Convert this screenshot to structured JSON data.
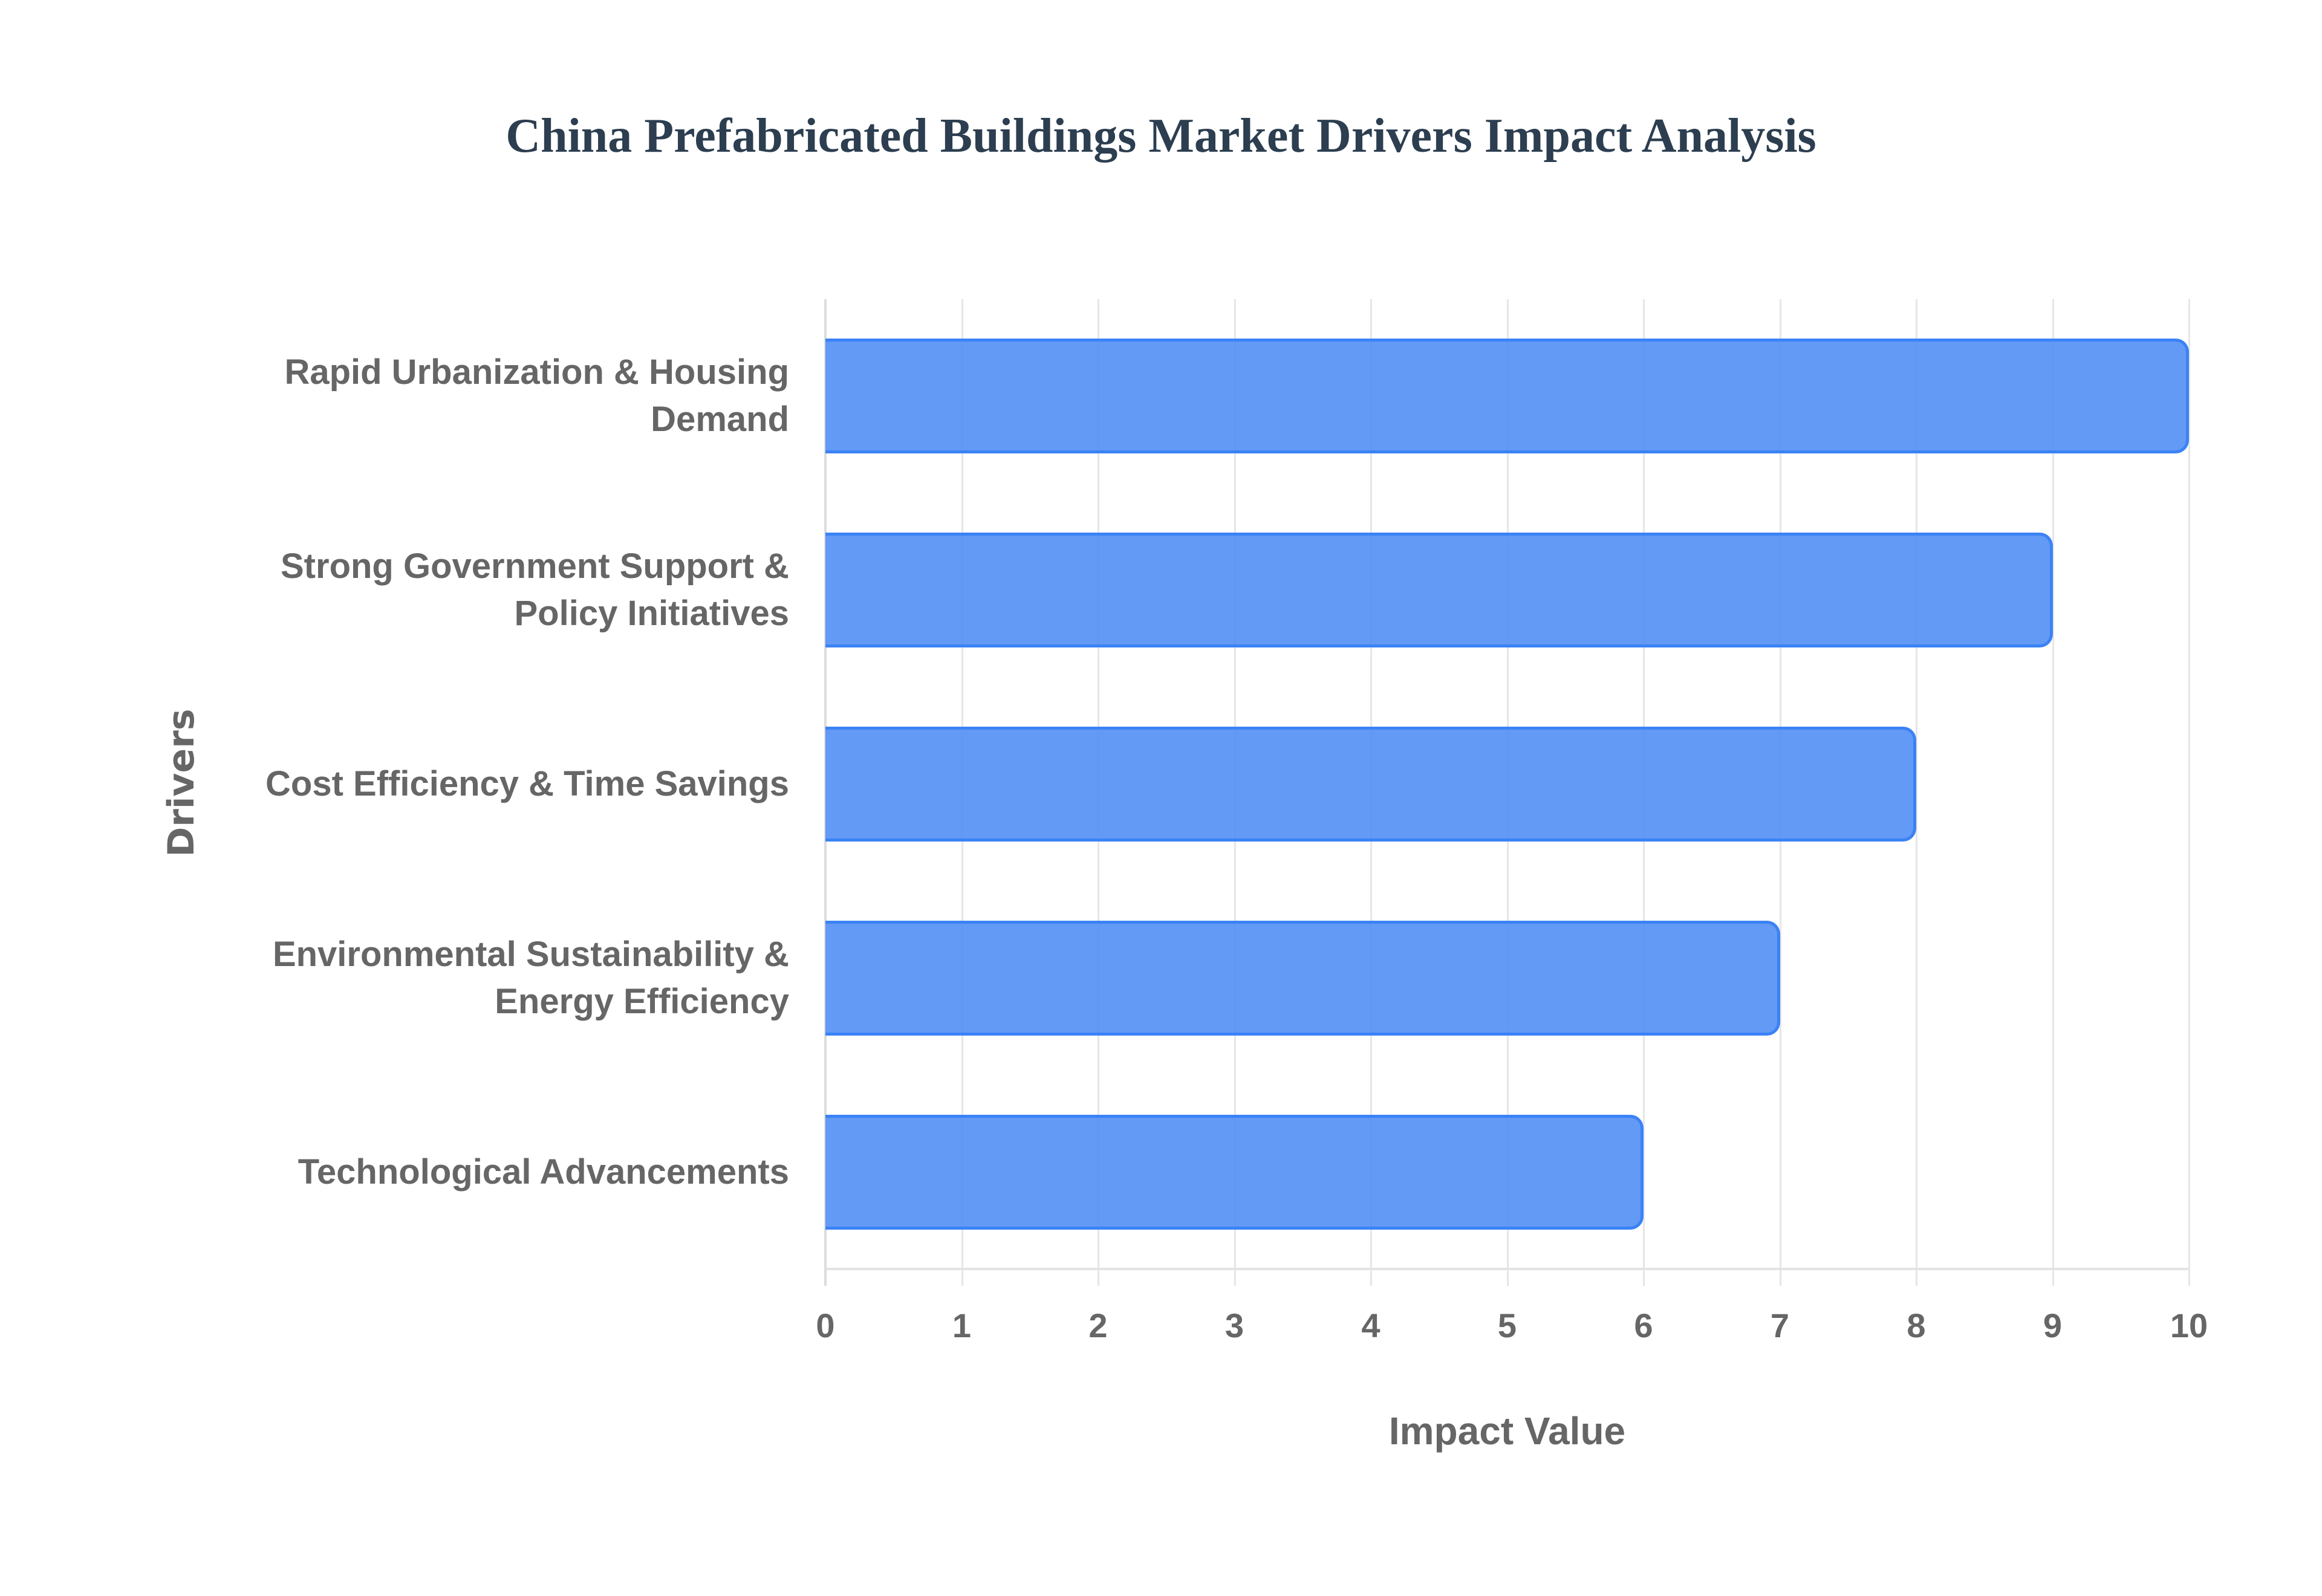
{
  "chart_data": {
    "type": "bar",
    "orientation": "horizontal",
    "title": "China Prefabricated Buildings Market Drivers Impact Analysis",
    "xlabel": "Impact Value",
    "ylabel": "Drivers",
    "categories": [
      "Rapid Urbanization & Housing Demand",
      "Strong Government Support & Policy Initiatives",
      "Cost Efficiency & Time Savings",
      "Environmental Sustainability & Energy Efficiency",
      "Technological Advancements"
    ],
    "category_lines": [
      [
        "Rapid Urbanization & Housing",
        "Demand"
      ],
      [
        "Strong Government Support &",
        "Policy Initiatives"
      ],
      [
        "Cost Efficiency & Time Savings"
      ],
      [
        "Environmental Sustainability &",
        "Energy Efficiency"
      ],
      [
        "Technological Advancements"
      ]
    ],
    "values": [
      10,
      9,
      8,
      7,
      6
    ],
    "xlim": [
      0,
      10
    ],
    "xticks": [
      "0",
      "1",
      "2",
      "3",
      "4",
      "5",
      "6",
      "7",
      "8",
      "9",
      "10"
    ],
    "grid": true,
    "legend": null,
    "colors": {
      "bar_fill": "#5b96f4",
      "bar_border": "#3b82f6",
      "title": "#2c3e50",
      "axis_text": "#666666",
      "grid": "#e6e6e6"
    }
  }
}
